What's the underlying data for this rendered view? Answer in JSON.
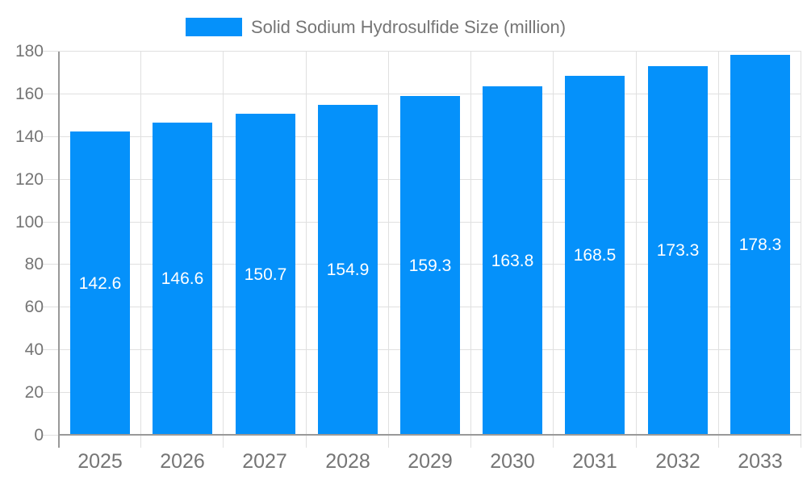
{
  "legend": {
    "label": "Solid Sodium Hydrosulfide Size (million)"
  },
  "chart_data": {
    "type": "bar",
    "title": "Solid Sodium Hydrosulfide Size (million)",
    "series_name": "Solid Sodium Hydrosulfide Size (million)",
    "categories": [
      "2025",
      "2026",
      "2027",
      "2028",
      "2029",
      "2030",
      "2031",
      "2032",
      "2033"
    ],
    "values": [
      142.6,
      146.6,
      150.7,
      154.9,
      159.3,
      163.8,
      168.5,
      173.3,
      178.3
    ],
    "value_labels": [
      "142.6",
      "146.6",
      "150.7",
      "154.9",
      "159.3",
      "163.8",
      "168.5",
      "173.3",
      "178.3"
    ],
    "xlabel": "",
    "ylabel": "",
    "ylim": [
      0,
      180
    ],
    "ytick_step": 20,
    "ytick_labels": [
      "0",
      "20",
      "40",
      "60",
      "80",
      "100",
      "120",
      "140",
      "160",
      "180"
    ],
    "grid": true,
    "legend_position": "top",
    "colors": {
      "bar": "#0591fa",
      "axis": "#999999",
      "grid": "#e0e0e0",
      "text": "#757575",
      "bar_label": "#ffffff",
      "background": "#ffffff"
    }
  }
}
